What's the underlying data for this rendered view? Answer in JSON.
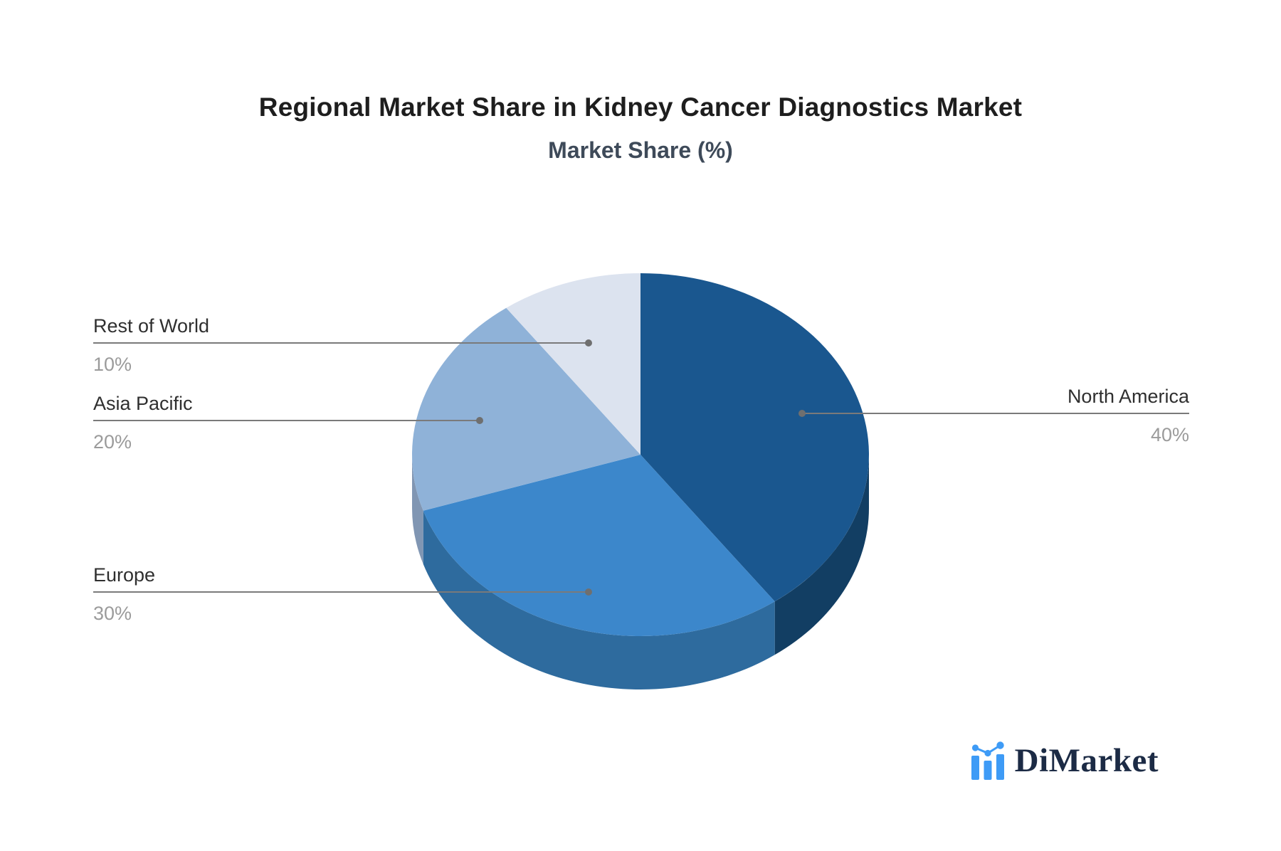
{
  "title": "Regional Market Share in Kidney Cancer Diagnostics Market",
  "subtitle": "Market Share (%)",
  "brand": {
    "name": "DiMarket",
    "icon": "bar-chart-logo-icon",
    "icon_color": "#3e9bf6",
    "text_color": "#1c2b45"
  },
  "chart_data": {
    "type": "pie",
    "title": "Regional Market Share in Kidney Cancer Diagnostics Market",
    "subtitle": "Market Share (%)",
    "unit": "%",
    "style": "3d-extruded-pie",
    "start_angle_deg": -90,
    "direction": "clockwise",
    "legend_position": "none",
    "labels_layout": "leader-lines",
    "slices": [
      {
        "label": "North America",
        "value": 40,
        "display": "40%",
        "color": "#1a578f",
        "side_color": "#123e63",
        "label_side": "right"
      },
      {
        "label": "Europe",
        "value": 30,
        "display": "30%",
        "color": "#3c87cb",
        "side_color": "#2e6b9e",
        "label_side": "left"
      },
      {
        "label": "Asia Pacific",
        "value": 20,
        "display": "20%",
        "color": "#8fb2d8",
        "side_color": "#8096b3",
        "label_side": "left"
      },
      {
        "label": "Rest of World",
        "value": 10,
        "display": "10%",
        "color": "#dce3ef",
        "side_color": "#c2ccdd",
        "label_side": "left"
      }
    ],
    "leader_line_color": "#7a7a7a",
    "leader_dot_color": "#6f6f6f",
    "label_color": "#2f2f2f",
    "value_color": "#9b9b9b",
    "background_color": "#ffffff"
  }
}
